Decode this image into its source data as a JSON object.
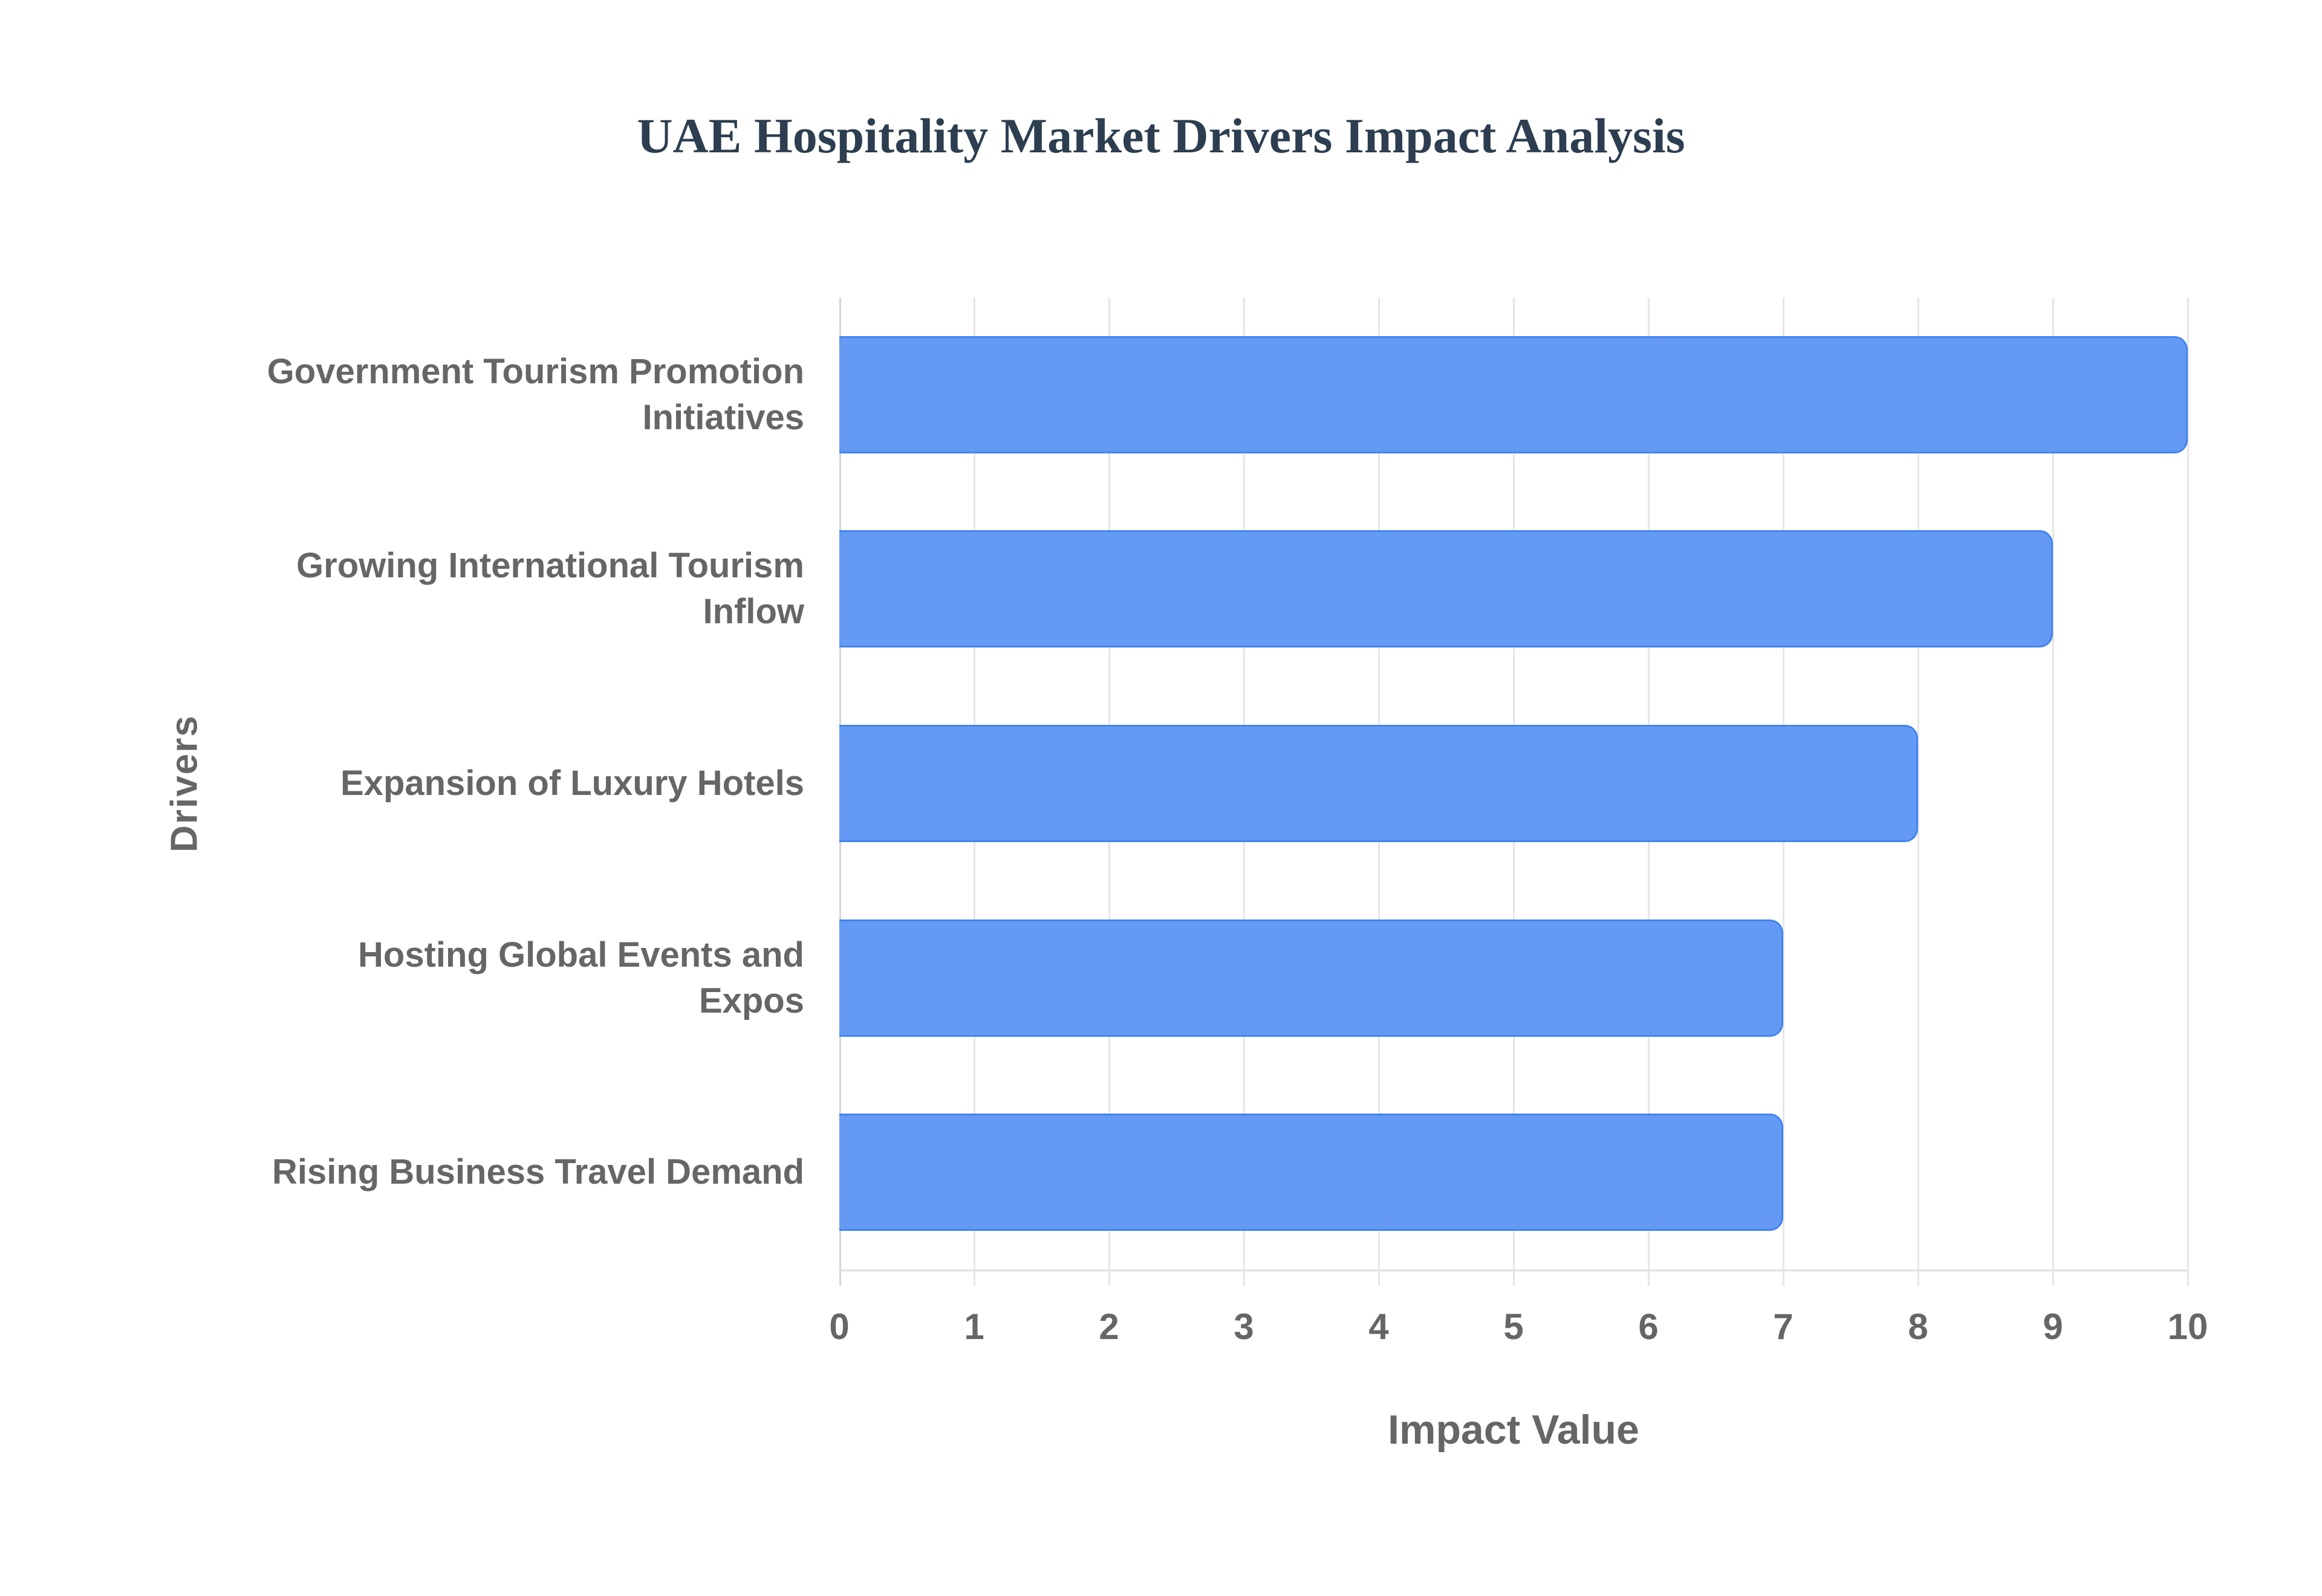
{
  "chart_data": {
    "type": "bar",
    "orientation": "horizontal",
    "title": "UAE Hospitality Market Drivers Impact Analysis",
    "xlabel": "Impact Value",
    "ylabel": "Drivers",
    "categories": [
      "Government Tourism Promotion Initiatives",
      "Growing International Tourism Inflow",
      "Expansion of Luxury Hotels",
      "Hosting Global Events and Expos",
      "Rising Business Travel Demand"
    ],
    "category_lines": [
      [
        "Government Tourism Promotion",
        "Initiatives"
      ],
      [
        "Growing International Tourism",
        "Inflow"
      ],
      [
        "Expansion of Luxury Hotels"
      ],
      [
        "Hosting Global Events and",
        "Expos"
      ],
      [
        "Rising Business Travel Demand"
      ]
    ],
    "values": [
      10,
      9,
      8,
      7,
      7
    ],
    "xlim": [
      0,
      10
    ],
    "xticks": [
      "0",
      "1",
      "2",
      "3",
      "4",
      "5",
      "6",
      "7",
      "8",
      "9",
      "10"
    ],
    "grid": true,
    "legend": null,
    "colors": {
      "bar_fill": "#6199f4",
      "bar_border": "#3f82f0",
      "title": "#2c3e50",
      "axis_text": "#666666",
      "grid": "#e6e6e6"
    }
  },
  "labels": {
    "title": "UAE Hospitality Market Drivers Impact Analysis",
    "xlabel": "Impact Value",
    "ylabel": "Drivers",
    "cat0_l1": "Government Tourism Promotion",
    "cat0_l2": "Initiatives",
    "cat1_l1": "Growing International Tourism",
    "cat1_l2": "Inflow",
    "cat2_l1": "Expansion of Luxury Hotels",
    "cat3_l1": "Hosting Global Events and",
    "cat3_l2": "Expos",
    "cat4_l1": "Rising Business Travel Demand"
  }
}
